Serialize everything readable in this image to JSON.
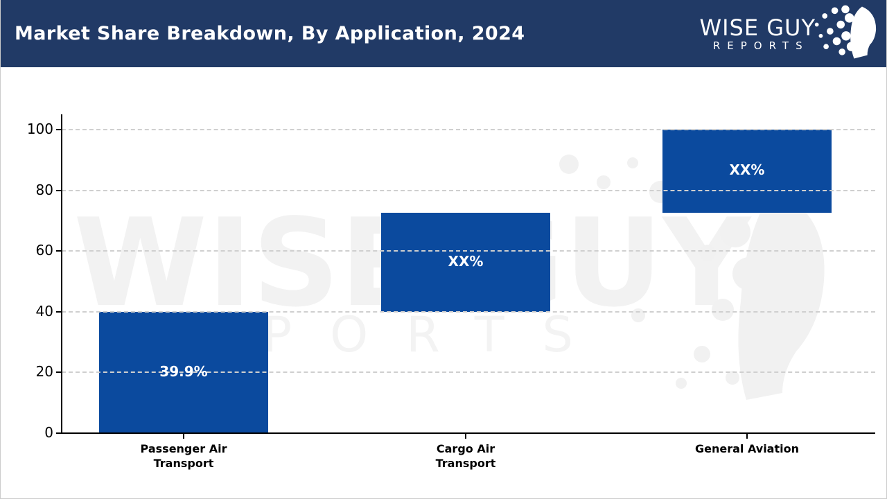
{
  "header": {
    "title": "Market Share Breakdown, By Application, 2024"
  },
  "logo": {
    "name_top": "WISE GUY",
    "name_bottom": "REPORTS"
  },
  "watermark": {
    "line1": "WISE GUY",
    "line2": "REPORTS"
  },
  "chart_data": {
    "type": "bar",
    "subtype": "waterfall-stacked-segments",
    "title": "Market Share Breakdown, By Application, 2024",
    "ylabel": "",
    "xlabel": "",
    "ylim": [
      0,
      105
    ],
    "yticks": [
      0,
      20,
      40,
      60,
      80,
      100
    ],
    "grid": "horizontal-dashed",
    "legend": "none",
    "categories": [
      "Passenger Air Transport",
      "Cargo Air Transport",
      "General Aviation"
    ],
    "category_tick_lines": [
      [
        "Passenger Air",
        "Transport"
      ],
      [
        "Cargo Air",
        "Transport"
      ],
      [
        "General Aviation"
      ]
    ],
    "bars": [
      {
        "category": "Passenger Air Transport",
        "start": 0,
        "end": 39.9,
        "value": 39.9,
        "label": "39.9%"
      },
      {
        "category": "Cargo Air Transport",
        "start": 39.9,
        "end": 72.6,
        "value": 32.7,
        "label": "XX%"
      },
      {
        "category": "General Aviation",
        "start": 72.6,
        "end": 100,
        "value": 27.4,
        "label": "XX%"
      }
    ],
    "colors": {
      "bar": "#0b4a9e",
      "bar_label": "#ffffff",
      "grid": "#cfcfcf",
      "axis": "#000000",
      "header_bg": "#213a66",
      "header_text": "#ffffff",
      "watermark": "#f2f2f2"
    }
  }
}
